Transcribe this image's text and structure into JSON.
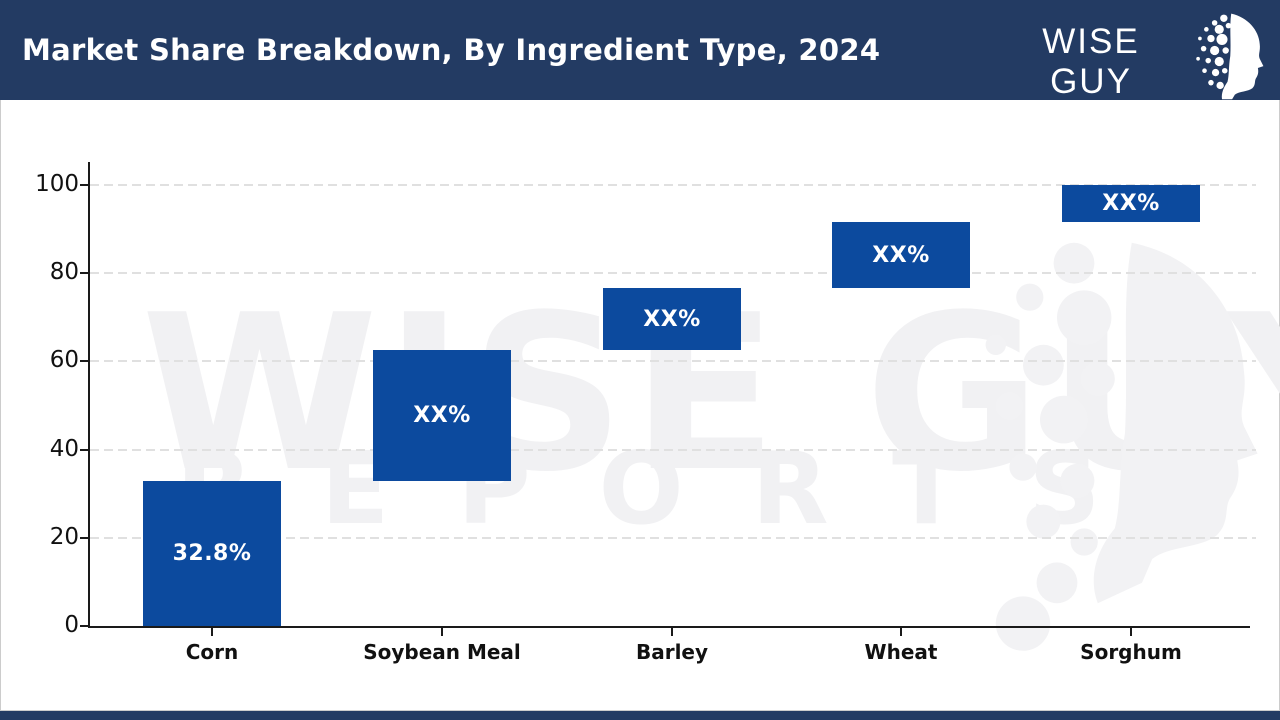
{
  "header": {
    "title": "Market Share Breakdown, By Ingredient Type, 2024",
    "logo": {
      "line1": "WISE GUY",
      "line2": "R E P O R T S"
    }
  },
  "watermark": {
    "line1": "WISE GUY",
    "line2": "REPORTS"
  },
  "colors": {
    "header_bg": "#233b63",
    "bar_blue": "#0c4a9e",
    "grid_gray": "#e0e0e0",
    "watermark_gray": "#f1f1f3",
    "axis_black": "#1a1a1a"
  },
  "chart_data": {
    "type": "bar",
    "subtype": "waterfall",
    "title": "Market Share Breakdown, By Ingredient Type, 2024",
    "xlabel": "",
    "ylabel": "",
    "categories": [
      "Corn",
      "Soybean Meal",
      "Barley",
      "Wheat",
      "Sorghum"
    ],
    "segments": [
      {
        "category": "Corn",
        "start": 0,
        "end": 32.8,
        "label": "32.8%"
      },
      {
        "category": "Soybean Meal",
        "start": 32.8,
        "end": 62.5,
        "label": "XX%"
      },
      {
        "category": "Barley",
        "start": 62.5,
        "end": 76.6,
        "label": "XX%"
      },
      {
        "category": "Wheat",
        "start": 76.6,
        "end": 91.6,
        "label": "XX%"
      },
      {
        "category": "Sorghum",
        "start": 91.6,
        "end": 100.0,
        "label": "XX%"
      }
    ],
    "yticks": [
      0,
      20,
      40,
      60,
      80,
      100
    ],
    "ylim": [
      0,
      105
    ],
    "grid": "horizontal-dashed",
    "legend": "none"
  }
}
